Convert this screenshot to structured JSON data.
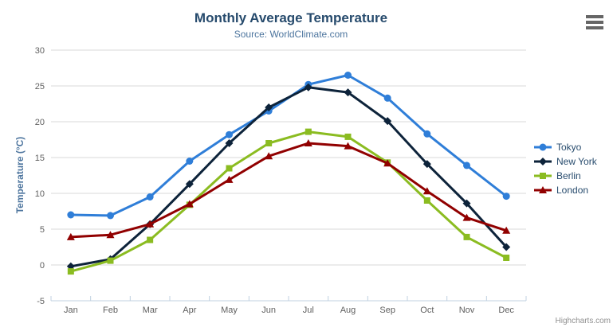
{
  "chart": {
    "credits": "Highcharts.com",
    "export_icon": "hamburger-icon"
  },
  "chart_data": {
    "type": "line",
    "title": "Monthly Average Temperature",
    "subtitle": "Source: WorldClimate.com",
    "xlabel": "",
    "ylabel": "Temperature (°C)",
    "categories": [
      "Jan",
      "Feb",
      "Mar",
      "Apr",
      "May",
      "Jun",
      "Jul",
      "Aug",
      "Sep",
      "Oct",
      "Nov",
      "Dec"
    ],
    "ylim": [
      -5,
      30
    ],
    "ytick_step": 5,
    "grid": true,
    "legend_position": "right",
    "series": [
      {
        "name": "Tokyo",
        "color": "#2f7ed8",
        "marker": "circle",
        "values": [
          7.0,
          6.9,
          9.5,
          14.5,
          18.2,
          21.5,
          25.2,
          26.5,
          23.3,
          18.3,
          13.9,
          9.6
        ]
      },
      {
        "name": "New York",
        "color": "#0d233a",
        "marker": "diamond",
        "values": [
          -0.2,
          0.8,
          5.7,
          11.3,
          17.0,
          22.0,
          24.8,
          24.1,
          20.1,
          14.1,
          8.6,
          2.5
        ]
      },
      {
        "name": "Berlin",
        "color": "#8bbc21",
        "marker": "square",
        "values": [
          -0.9,
          0.6,
          3.5,
          8.4,
          13.5,
          17.0,
          18.6,
          17.9,
          14.3,
          9.0,
          3.9,
          1.0
        ]
      },
      {
        "name": "London",
        "color": "#910000",
        "marker": "triangle",
        "values": [
          3.9,
          4.2,
          5.7,
          8.5,
          11.9,
          15.2,
          17.0,
          16.6,
          14.2,
          10.3,
          6.6,
          4.8
        ]
      }
    ],
    "colors": {
      "title": "#274b6d",
      "subtitle": "#4d759e",
      "axis_title": "#4d759e",
      "axis_labels": "#606060",
      "gridline": "#d8d8d8",
      "axis_line": "#c0d0e0",
      "legend_text": "#274b6d",
      "credits_text": "#909090",
      "menu_icon": "#666666",
      "background": "#ffffff"
    }
  }
}
